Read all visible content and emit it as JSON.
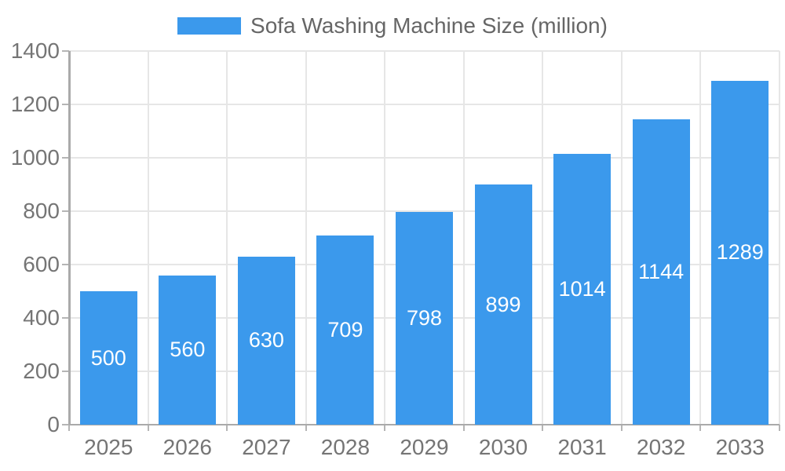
{
  "chart_data": {
    "type": "bar",
    "title": "",
    "legend": {
      "label": "Sofa Washing Machine Size (million)",
      "position": "top"
    },
    "categories": [
      "2025",
      "2026",
      "2027",
      "2028",
      "2029",
      "2030",
      "2031",
      "2032",
      "2033"
    ],
    "series": [
      {
        "name": "Sofa Washing Machine Size (million)",
        "values": [
          500,
          560,
          630,
          709,
          798,
          899,
          1014,
          1144,
          1289
        ]
      }
    ],
    "bar_labels": [
      500,
      560,
      630,
      709,
      798,
      899,
      1014,
      1144,
      1289
    ],
    "xlabel": "",
    "ylabel": "",
    "ylim": [
      0,
      1400
    ],
    "yticks": [
      0,
      200,
      400,
      600,
      800,
      1000,
      1200,
      1400
    ],
    "grid": "both",
    "colors": {
      "bar": "#3B99EC",
      "grid": "#e6e6e6",
      "axis": "#aaaaaa",
      "tick": "#b5b5b5",
      "tick_label": "#757575",
      "legend_text": "#666666",
      "bar_label": "#ffffff",
      "background": "#ffffff"
    }
  }
}
